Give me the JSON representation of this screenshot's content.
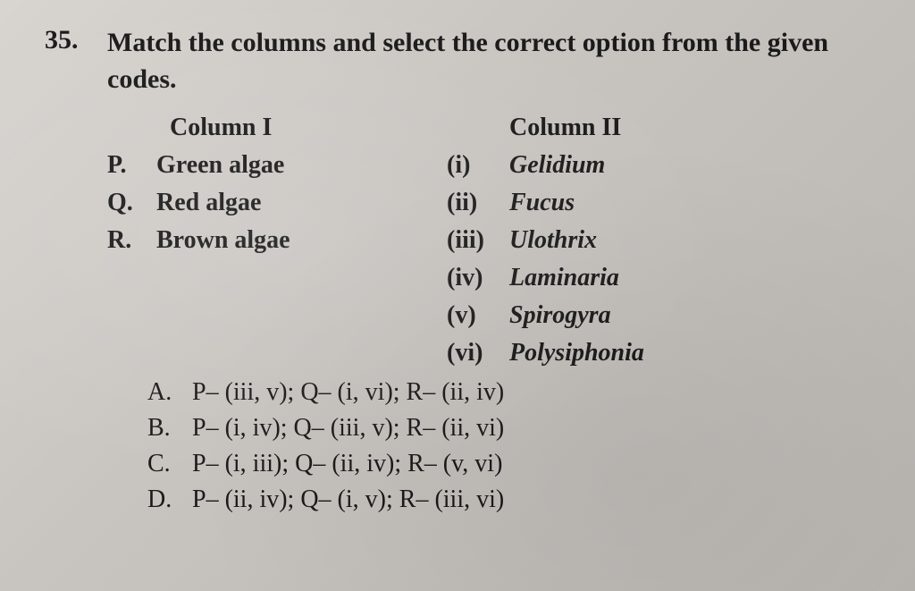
{
  "question": {
    "number": "35.",
    "text": "Match the columns and select the correct option from the given codes."
  },
  "columns": {
    "header1": "Column I",
    "header2": "Column II",
    "left": [
      {
        "label": "P.",
        "text": "Green algae"
      },
      {
        "label": "Q.",
        "text": "Red algae"
      },
      {
        "label": "R.",
        "text": "Brown algae"
      }
    ],
    "right": [
      {
        "label": "(i)",
        "text": "Gelidium"
      },
      {
        "label": "(ii)",
        "text": "Fucus"
      },
      {
        "label": "(iii)",
        "text": "Ulothrix"
      },
      {
        "label": "(iv)",
        "text": "Laminaria"
      },
      {
        "label": "(v)",
        "text": "Spirogyra"
      },
      {
        "label": "(vi)",
        "text": "Polysiphonia"
      }
    ]
  },
  "options": [
    {
      "label": "A.",
      "text": "P– (iii, v); Q– (i, vi); R– (ii, iv)"
    },
    {
      "label": "B.",
      "text": "P– (i, iv); Q– (iii, v); R– (ii, vi)"
    },
    {
      "label": "C.",
      "text": "P– (i, iii); Q– (ii, iv); R– (v, vi)"
    },
    {
      "label": "D.",
      "text": "P– (ii, iv); Q– (i, v); R– (iii, vi)"
    }
  ],
  "style": {
    "background_colors": [
      "#d8d4d0",
      "#c8c4c0",
      "#b8b4b0"
    ],
    "text_color": "#1a1a1a",
    "font_family": "Georgia, Times New Roman, serif",
    "heading_fontsize": 30,
    "body_fontsize": 28,
    "question_bold": true,
    "column_items_bold": true,
    "right_items_italic": true
  }
}
